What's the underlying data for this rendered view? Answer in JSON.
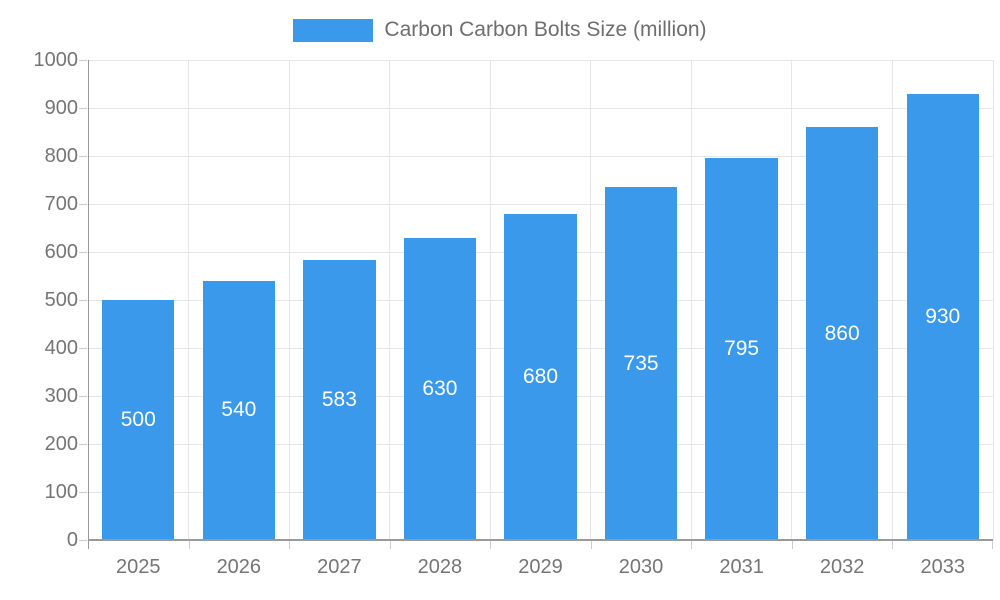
{
  "legend": {
    "label": "Carbon Carbon Bolts Size (million)"
  },
  "chart_data": {
    "type": "bar",
    "title": "Carbon Carbon Bolts Size (million)",
    "series_name": "Carbon Carbon Bolts Size (million)",
    "categories": [
      "2025",
      "2026",
      "2027",
      "2028",
      "2029",
      "2030",
      "2031",
      "2032",
      "2033"
    ],
    "values": [
      500,
      540,
      583,
      630,
      680,
      735,
      795,
      860,
      930
    ],
    "xlabel": "",
    "ylabel": "",
    "ylim": [
      0,
      1000
    ],
    "yticks": [
      0,
      100,
      200,
      300,
      400,
      500,
      600,
      700,
      800,
      900,
      1000
    ],
    "grid": true,
    "legend_position": "top-center",
    "value_label_position": "inside-center",
    "colors": {
      "bar": "#3B99EC",
      "grid": "#E6E6E6",
      "axis": "#999999",
      "tick": "#CCCCCC",
      "axis_label": "#757575",
      "value_label": "#FFFFFF",
      "legend_text": "#6E6E6E"
    }
  }
}
